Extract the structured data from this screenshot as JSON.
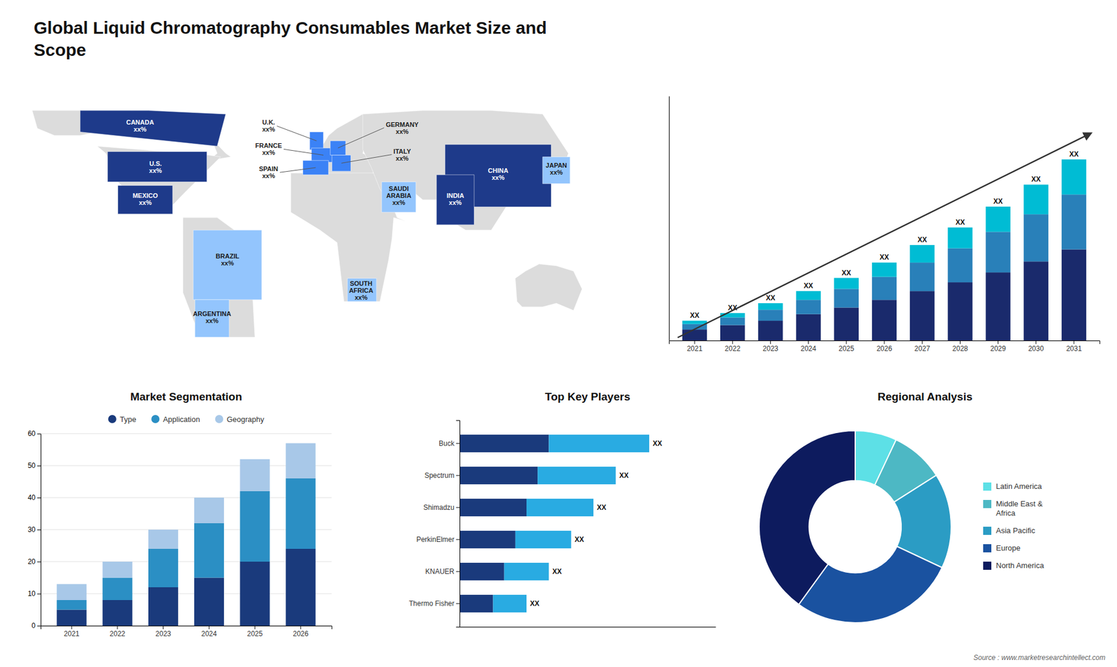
{
  "chart_data": [
    {
      "type": "bar",
      "title": "Global Liquid Chromatography Consumables Market Size and\nScope",
      "categories": [
        "2021",
        "2022",
        "2023",
        "2024",
        "2025",
        "2026",
        "2027",
        "2028",
        "2029",
        "2030",
        "2031"
      ],
      "series": [
        {
          "color": "#1a2a6c",
          "values": [
            1.0,
            1.4,
            1.8,
            2.4,
            3.0,
            3.7,
            4.5,
            5.3,
            6.2,
            7.2,
            8.3
          ]
        },
        {
          "color": "#2980b9",
          "values": [
            0.5,
            0.7,
            1.0,
            1.3,
            1.7,
            2.1,
            2.6,
            3.1,
            3.7,
            4.3,
            5.0
          ]
        },
        {
          "color": "#00bcd4",
          "values": [
            0.3,
            0.4,
            0.6,
            0.8,
            1.0,
            1.3,
            1.6,
            1.9,
            2.3,
            2.7,
            3.2
          ],
          "value_labels": [
            "XX",
            "XX",
            "XX",
            "XX",
            "XX",
            "XX",
            "XX",
            "XX",
            "XX",
            "XX",
            "XX"
          ]
        }
      ],
      "stacked": true,
      "data_labels": true,
      "ylim": [
        0,
        22.275
      ],
      "tick_labels": "x",
      "annotations": [
        "Source : www.marketresearchintellect.com"
      ]
    },
    {
      "type": "map",
      "categories": [
        "CANADA",
        "U.S.",
        "MEXICO",
        "BRAZIL",
        "ARGENTINA",
        "U.K.",
        "FRANCE",
        "SPAIN",
        "GERMANY",
        "ITALY",
        "SAUDI\nARABIA",
        "SOUTH\nAFRICA",
        "CHINA",
        "JAPAN",
        "INDIA"
      ],
      "value_labels": [
        "xx%",
        "xx%",
        "xx%",
        "xx%",
        "xx%",
        "xx%",
        "xx%",
        "xx%",
        "xx%",
        "xx%",
        "xx%",
        "xx%",
        "xx%",
        "xx%",
        "xx%"
      ],
      "colors": [
        "#1e3a8a",
        "#1e3a8a",
        "#1e3a8a",
        "#93c5fd",
        "#93c5fd",
        "#3b82f6",
        "#3b82f6",
        "#3b82f6",
        "#3b82f6",
        "#3b82f6",
        "#93c5fd",
        "#93c5fd",
        "#1e3a8a",
        "#93c5fd",
        "#1e3a8a"
      ],
      "data_labels": true
    },
    {
      "type": "bar",
      "title": "Market Segmentation",
      "categories": [
        "2021",
        "2022",
        "2023",
        "2024",
        "2025",
        "2026"
      ],
      "series": [
        {
          "name": "Type",
          "color": "#1a3a7c",
          "values": [
            5,
            8,
            12,
            15,
            20,
            24
          ]
        },
        {
          "name": "Application",
          "color": "#2b8fc4",
          "values": [
            3,
            7,
            12,
            17,
            22,
            22
          ]
        },
        {
          "name": "Geography",
          "color": "#a8c8e8",
          "values": [
            5,
            5,
            6,
            8,
            10,
            11
          ]
        }
      ],
      "stacked": true,
      "ylim": [
        0,
        60
      ],
      "yticks": [
        0,
        10,
        20,
        30,
        40,
        50,
        60
      ],
      "grid": true,
      "legend": "top"
    },
    {
      "type": "bar",
      "title": "Top Key Players",
      "orientation": "horizontal",
      "categories": [
        "Thermo Fisher",
        "KNAUER",
        "PerkinElmer",
        "Shimadzu",
        "Spectrum",
        "Buck"
      ],
      "series": [
        {
          "color": "#1a3a7c",
          "values": [
            1.5,
            2.0,
            2.5,
            3.0,
            3.5,
            4.0
          ]
        },
        {
          "color": "#29abe2",
          "values": [
            1.5,
            2.0,
            2.5,
            3.0,
            3.5,
            4.5
          ],
          "value_labels": [
            "XX",
            "XX",
            "XX",
            "XX",
            "XX",
            "XX"
          ]
        }
      ],
      "stacked": true,
      "data_labels": true,
      "xlim": [
        0,
        11.475
      ],
      "tick_labels": "y"
    },
    {
      "type": "pie",
      "title": "Regional Analysis",
      "categories": [
        "Latin America",
        "Middle East &\nAfrica",
        "Asia Pacific",
        "Europe",
        "North America"
      ],
      "values": [
        7,
        9,
        16,
        28,
        40
      ],
      "colors": [
        "#5de0e6",
        "#4db8c4",
        "#2b9cc4",
        "#1a52a0",
        "#0d1b5e"
      ],
      "legend": "right"
    }
  ]
}
